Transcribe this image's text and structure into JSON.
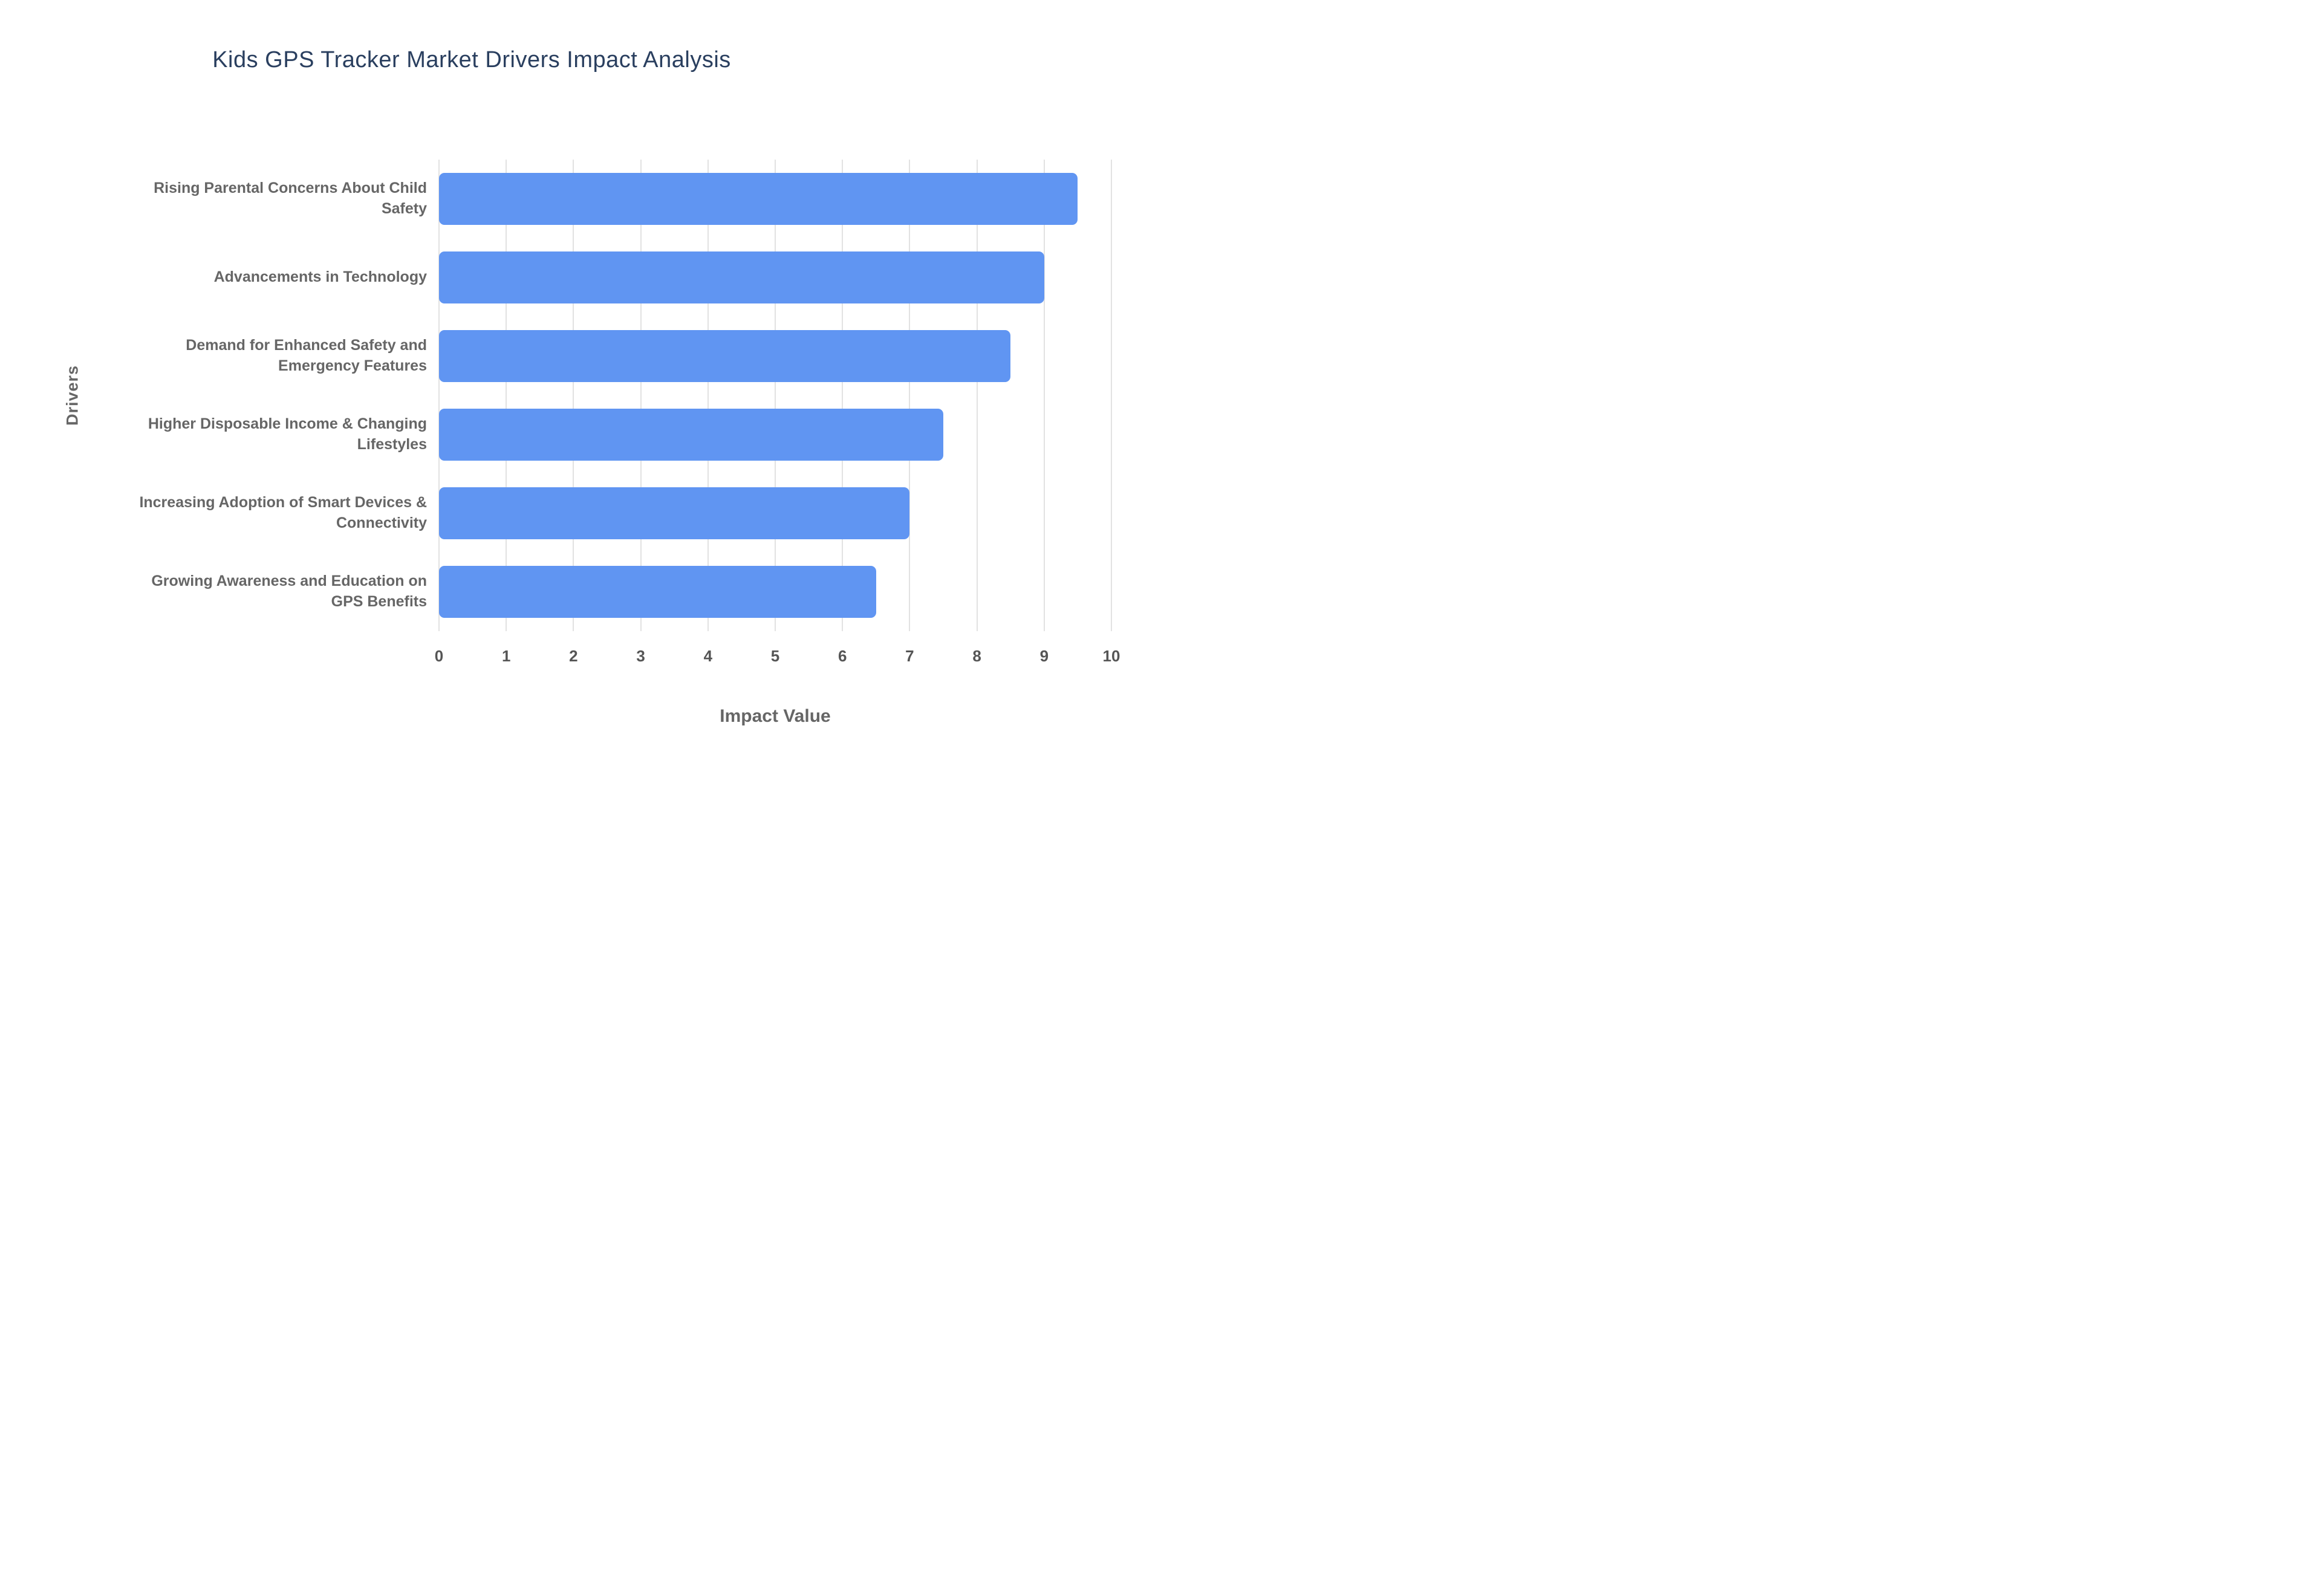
{
  "title": "Kids GPS Tracker Market Drivers Impact Analysis",
  "chart_data": {
    "type": "bar",
    "orientation": "horizontal",
    "title": "Kids GPS Tracker Market Drivers Impact Analysis",
    "categories": [
      "Rising Parental Concerns About Child Safety",
      "Advancements in Technology",
      "Demand for Enhanced Safety and Emergency Features",
      "Higher Disposable Income & Changing Lifestyles",
      "Increasing Adoption of Smart Devices & Connectivity",
      "Growing Awareness and Education on GPS Benefits"
    ],
    "values": [
      9.5,
      9,
      8.5,
      7.5,
      7,
      6.5
    ],
    "xlabel": "Impact Value",
    "ylabel": "Drivers",
    "xlim": [
      0,
      10
    ],
    "xticks": [
      0,
      1,
      2,
      3,
      4,
      5,
      6,
      7,
      8,
      9,
      10
    ],
    "grid": true,
    "legend": "none",
    "bar_color": "#6095F2",
    "grid_color": "#e2e2e2",
    "title_color": "#2a3f5f",
    "label_color": "#666666"
  }
}
